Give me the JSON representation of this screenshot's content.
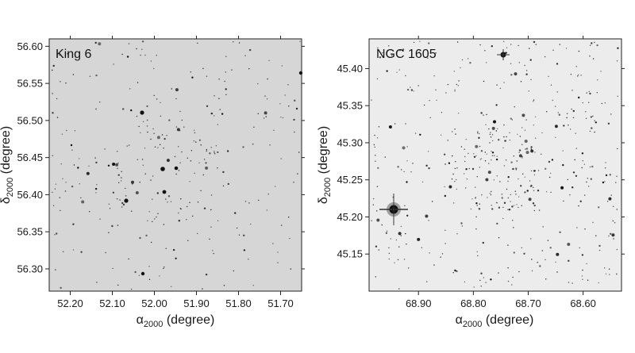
{
  "colors": {
    "left_background": "#d6d6d6",
    "right_background": "#ececec",
    "star": "#111111",
    "frame": "#222222"
  },
  "panels": [
    {
      "title": "King 6",
      "xlabel": {
        "symbol": "α",
        "subscript": "2000",
        "unit": " (degree)"
      },
      "ylabel": {
        "symbol": "δ",
        "subscript": "2000",
        "unit": " (degree)"
      },
      "x_range": [
        52.25,
        51.65
      ],
      "y_range": [
        56.27,
        56.61
      ],
      "x_ticks": [
        "52.20",
        "52.10",
        "52.00",
        "51.90",
        "51.80",
        "51.70"
      ],
      "y_ticks": [
        "56.30",
        "56.35",
        "56.40",
        "56.45",
        "56.50",
        "56.55",
        "56.60"
      ]
    },
    {
      "title": "NGC 1605",
      "xlabel": {
        "symbol": "α",
        "subscript": "2000",
        "unit": " (degree)"
      },
      "ylabel": {
        "symbol": "δ",
        "subscript": "2000",
        "unit": " (degree)"
      },
      "x_range": [
        68.99,
        68.53
      ],
      "y_range": [
        45.1,
        45.44
      ],
      "x_ticks": [
        "68.90",
        "68.80",
        "68.70",
        "68.60"
      ],
      "y_ticks": [
        "45.15",
        "45.20",
        "45.25",
        "45.30",
        "45.35",
        "45.40"
      ]
    }
  ]
}
